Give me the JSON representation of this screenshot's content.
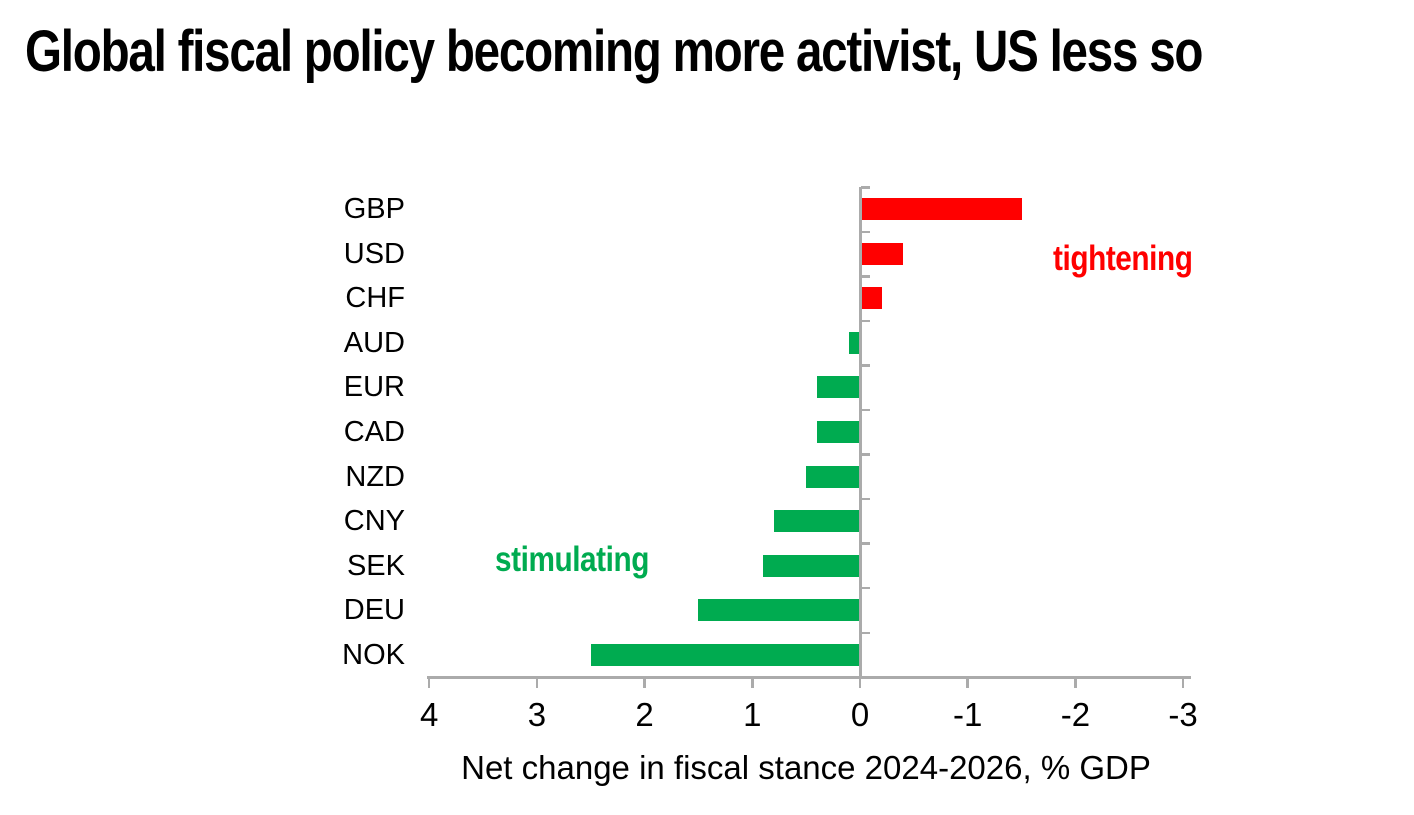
{
  "title": "Global fiscal policy becoming more activist, US less so",
  "chart_data": {
    "type": "bar",
    "orientation": "horizontal",
    "title": "Global fiscal policy becoming more activist, US less so",
    "xlabel": "Net change in fiscal stance 2024-2026, % GDP",
    "categories": [
      "GBP",
      "USD",
      "CHF",
      "AUD",
      "EUR",
      "CAD",
      "NZD",
      "CNY",
      "SEK",
      "DEU",
      "NOK"
    ],
    "values": [
      -1.5,
      -0.4,
      -0.2,
      0.1,
      0.4,
      0.4,
      0.5,
      0.8,
      0.9,
      1.5,
      2.5
    ],
    "value_sign_convention": "positive = stimulating (bar extends left), negative = tightening (bar extends right)",
    "x_ticks": [
      4,
      3,
      2,
      1,
      0,
      -1,
      -2,
      -3
    ],
    "xlim": [
      4,
      -3
    ],
    "x_axis_reversed": true,
    "grid": false,
    "legend": false,
    "colors": {
      "positive": "#00ab50",
      "negative": "#ff0000",
      "axis": "#ababab",
      "text": "#000000"
    },
    "annotations": [
      {
        "text": "tightening",
        "color": "#ff0000",
        "near_category": "USD"
      },
      {
        "text": "stimulating",
        "color": "#00ab50",
        "near_category": "SEK"
      }
    ]
  }
}
